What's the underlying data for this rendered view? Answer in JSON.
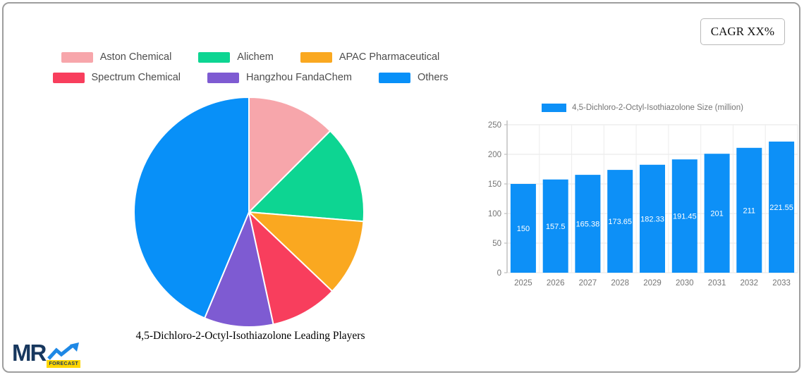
{
  "cagr_label": "CAGR XX%",
  "logo": {
    "text": "MR",
    "tag": "FORECAST"
  },
  "chart_data": [
    {
      "type": "pie",
      "title": "4,5-Dichloro-2-Octyl-Isothiazolone Leading Players",
      "labels": [
        "Aston Chemical",
        "Alichem",
        "APAC Pharmaceutical",
        "Spectrum Chemical",
        "Hangzhou FandaChem",
        "Others"
      ],
      "values_percent": [
        12.5,
        13.8,
        10.8,
        9.5,
        9.7,
        43.7
      ],
      "colors": [
        "#F7A6AB",
        "#0DD592",
        "#FAA820",
        "#F83E5D",
        "#7E5BD2",
        "#0890F8"
      ],
      "start_angle_deg": 0,
      "direction": "clockwise",
      "legend_position": "top",
      "legend_rows": [
        [
          0,
          1,
          2
        ],
        [
          3,
          4,
          5
        ]
      ]
    },
    {
      "type": "bar",
      "legend": "4,5-Dichloro-2-Octyl-Isothiazolone Size (million)",
      "categories": [
        "2025",
        "2026",
        "2027",
        "2028",
        "2029",
        "2030",
        "2031",
        "2032",
        "2033"
      ],
      "values": [
        150,
        157.5,
        165.38,
        173.65,
        182.33,
        191.45,
        201,
        211,
        221.55
      ],
      "bar_color": "#0D90F7",
      "value_label_color": "#ffffff",
      "axis_label_color": "#757575",
      "gridline_color": "#e6e6e6",
      "xlabel": "",
      "ylabel": "",
      "ylim": [
        0,
        250
      ],
      "yticks": [
        0,
        50,
        100,
        150,
        200,
        250
      ],
      "grid": true,
      "legend_position": "top"
    }
  ]
}
